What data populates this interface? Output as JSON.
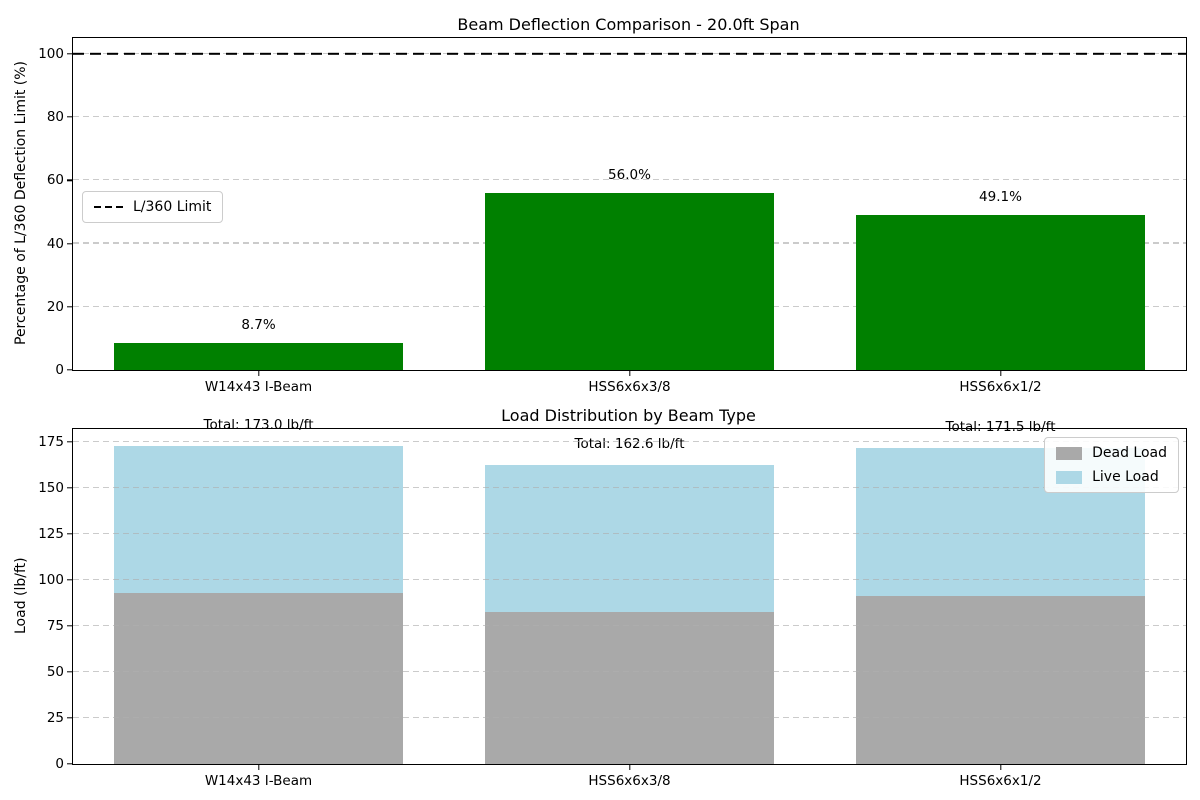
{
  "figure": {
    "background": "#ffffff"
  },
  "chart_data": [
    {
      "type": "bar",
      "title": "Beam Deflection Comparison - 20.0ft Span",
      "xlabel": "",
      "ylabel": "Percentage of L/360 Deflection Limit (%)",
      "categories": [
        "W14x43 I-Beam",
        "HSS6x6x3/8",
        "HSS6x6x1/2"
      ],
      "values": [
        8.7,
        56.0,
        49.1
      ],
      "bar_labels": [
        "8.7%",
        "56.0%",
        "49.1%"
      ],
      "bar_color": "#008000",
      "ylim": [
        0,
        105
      ],
      "yticks": [
        0,
        20,
        40,
        60,
        80,
        100
      ],
      "grid": true,
      "grid_over_bars": false,
      "limit_line": {
        "value": 100,
        "label": "L/360 Limit",
        "color": "#000000",
        "style": "dashed"
      },
      "legend": {
        "position": "center-left",
        "entries": [
          {
            "label": "L/360 Limit",
            "swatch": "dashed-line",
            "color": "#000000"
          }
        ]
      }
    },
    {
      "type": "stacked-bar",
      "title": "Load Distribution by Beam Type",
      "xlabel": "",
      "ylabel": "Load (lb/ft)",
      "categories": [
        "W14x43 I-Beam",
        "HSS6x6x3/8",
        "HSS6x6x1/2"
      ],
      "series": [
        {
          "name": "Dead Load",
          "color": "#a9a9a9",
          "values": [
            93.0,
            82.6,
            91.5
          ]
        },
        {
          "name": "Live Load",
          "color": "#add8e6",
          "values": [
            80.0,
            80.0,
            80.0
          ]
        }
      ],
      "totals": [
        173.0,
        162.6,
        171.5
      ],
      "total_labels": [
        "Total: 173.0 lb/ft",
        "Total: 162.6 lb/ft",
        "Total: 171.5 lb/ft"
      ],
      "ylim": [
        0,
        182
      ],
      "yticks": [
        0,
        25,
        50,
        75,
        100,
        125,
        150,
        175
      ],
      "grid": true,
      "grid_over_bars": true,
      "legend": {
        "position": "top-right",
        "entries": [
          {
            "label": "Dead Load",
            "swatch": "patch",
            "color": "#a9a9a9"
          },
          {
            "label": "Live Load",
            "swatch": "patch",
            "color": "#add8e6"
          }
        ]
      }
    }
  ]
}
